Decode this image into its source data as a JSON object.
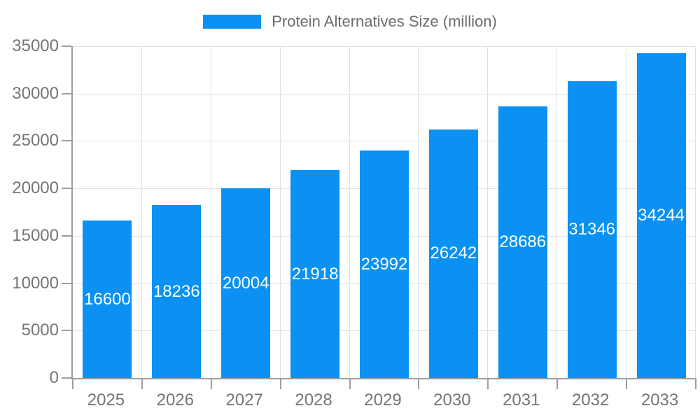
{
  "legend": {
    "label": "Protein Alternatives Size (million)"
  },
  "chart_data": {
    "type": "bar",
    "title": "Protein Alternatives Size (million)",
    "categories": [
      "2025",
      "2026",
      "2027",
      "2028",
      "2029",
      "2030",
      "2031",
      "2032",
      "2033"
    ],
    "values": [
      16600,
      18236,
      20004,
      21918,
      23992,
      26242,
      28686,
      31346,
      34244
    ],
    "series": [
      {
        "name": "Protein Alternatives Size (million)",
        "values": [
          16600,
          18236,
          20004,
          21918,
          23992,
          26242,
          28686,
          31346,
          34244
        ]
      }
    ],
    "xlabel": "",
    "ylabel": "",
    "ylim": [
      0,
      35000
    ],
    "yticks": [
      0,
      5000,
      10000,
      15000,
      20000,
      25000,
      30000,
      35000
    ],
    "grid": true,
    "legend_position": "top-center",
    "value_label_position": "inside-middle",
    "colors": {
      "bar": "#0A91F2",
      "axis": "#9E9E9E",
      "gridline": "#E0E0E0",
      "tick_label": "#757575",
      "legend_text": "#6D6D6D",
      "value_label": "#FFFFFF",
      "background": "#FFFFFF"
    }
  }
}
